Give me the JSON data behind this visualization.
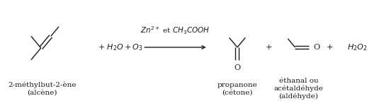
{
  "bg_color": "#ffffff",
  "fig_width": 5.42,
  "fig_height": 1.43,
  "dpi": 100,
  "text_color": "#1a1a1a",
  "font_size": 8.0,
  "alkene_label_line1": "2-méthylbut-2-ène",
  "alkene_label_line2": "(alcène)",
  "propanone_label_line1": "propanone",
  "propanone_label_line2": "(cétone)",
  "aldehyde_label_line1": "éthanal ou",
  "aldehyde_label_line2": "acétaldéhyde",
  "aldehyde_label_line3": "(aldéhyde)"
}
